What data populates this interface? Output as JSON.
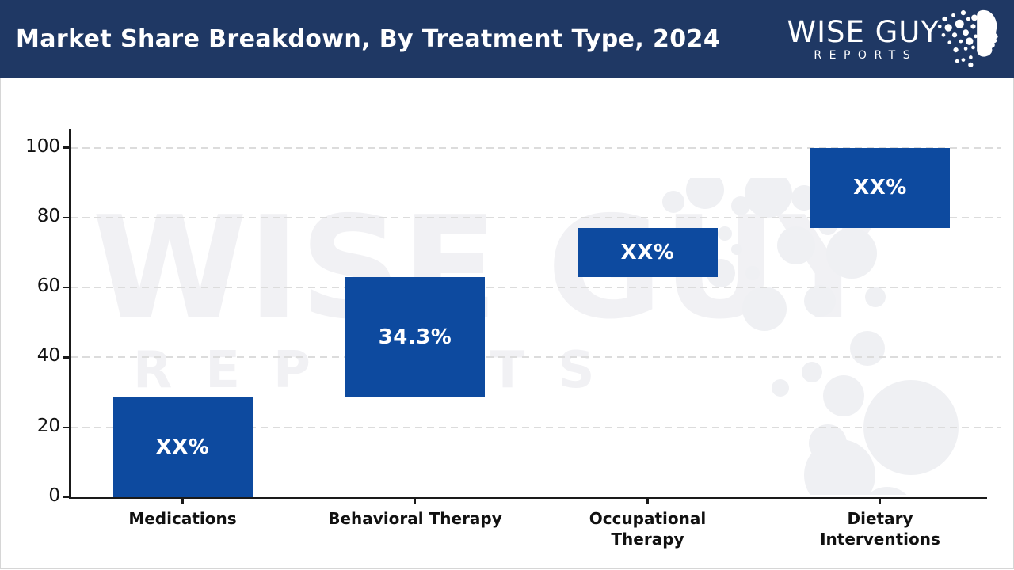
{
  "header": {
    "title": "Market Share Breakdown, By Treatment Type, 2024",
    "bg_color": "#1f3864",
    "logo": {
      "line1": "WISE GUY",
      "line2": "REPORTS"
    }
  },
  "watermark": {
    "line1": "WISE GUY",
    "line2": "REPORTS"
  },
  "chart_data": {
    "type": "bar",
    "subtype": "waterfall",
    "title": "Market Share Breakdown, By Treatment Type, 2024",
    "categories": [
      "Medications",
      "Behavioral Therapy",
      "Occupational\nTherapy",
      "Dietary\nInterventions"
    ],
    "segments": [
      {
        "category": "Medications",
        "start": 0,
        "end": 28.6,
        "label": "XX%"
      },
      {
        "category": "Behavioral Therapy",
        "start": 28.6,
        "end": 62.9,
        "label": "34.3%"
      },
      {
        "category": "Occupational Therapy",
        "start": 62.9,
        "end": 77.0,
        "label": "XX%"
      },
      {
        "category": "Dietary Interventions",
        "start": 77.0,
        "end": 100.0,
        "label": "XX%"
      }
    ],
    "yticks": [
      0,
      20,
      40,
      60,
      80,
      100
    ],
    "ylim": [
      0,
      105
    ],
    "xlabel": "",
    "ylabel": "",
    "grid": "dashed-horizontal",
    "legend": "none",
    "bar_color": "#0d4a9f",
    "bar_label_color": "#ffffff",
    "axis_color": "#1a1a1a",
    "gridline_color": "#dcdcdc"
  }
}
